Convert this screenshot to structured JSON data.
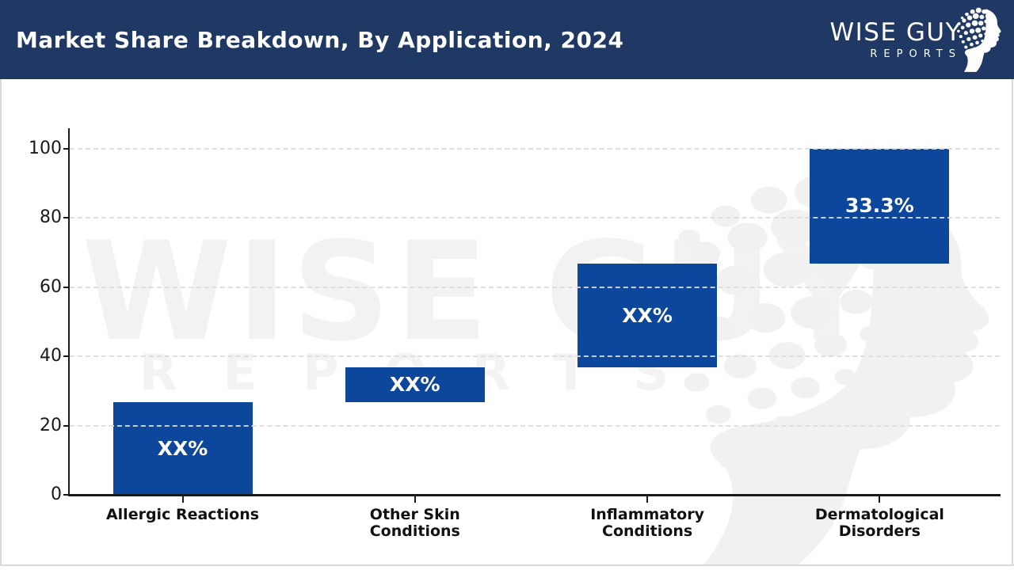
{
  "header": {
    "title": "Market Share Breakdown, By Application, 2024",
    "logo": {
      "line1": "WISE GUY",
      "line2": "REPORTS"
    }
  },
  "watermark": {
    "line1": "WISE GUY",
    "line2": "REPORTS"
  },
  "colors": {
    "header_bg": "#1f3864",
    "bar": "#0d479c",
    "bar_label": "#ffffff",
    "grid": "#dcdcdc",
    "axis": "#1a1a1a",
    "watermark": "#f2f2f2"
  },
  "chart_data": {
    "type": "bar",
    "subtype": "waterfall",
    "title": "Market Share Breakdown, By Application, 2024",
    "categories": [
      "Allergic Reactions",
      "Other Skin Conditions",
      "Inflammatory Conditions",
      "Dermatological Disorders"
    ],
    "categories_lines": [
      [
        "Allergic Reactions"
      ],
      [
        "Other Skin",
        "Conditions"
      ],
      [
        "Inflammatory",
        "Conditions"
      ],
      [
        "Dermatological",
        "Disorders"
      ]
    ],
    "segments": [
      {
        "category": "Allergic Reactions",
        "start": 0,
        "end": 26.7,
        "label": "XX%"
      },
      {
        "category": "Other Skin Conditions",
        "start": 26.7,
        "end": 36.7,
        "label": "XX%"
      },
      {
        "category": "Inflammatory Conditions",
        "start": 36.7,
        "end": 66.7,
        "label": "XX%"
      },
      {
        "category": "Dermatological Disorders",
        "start": 66.7,
        "end": 100,
        "label": "33.3%"
      }
    ],
    "values_displayed": [
      "XX%",
      "XX%",
      "XX%",
      "33.3%"
    ],
    "yticks": [
      0,
      20,
      40,
      60,
      80,
      100
    ],
    "ylim": [
      0,
      105
    ],
    "xlabel": "",
    "ylabel": "",
    "grid": "horizontal-dashed",
    "legend": "none"
  }
}
